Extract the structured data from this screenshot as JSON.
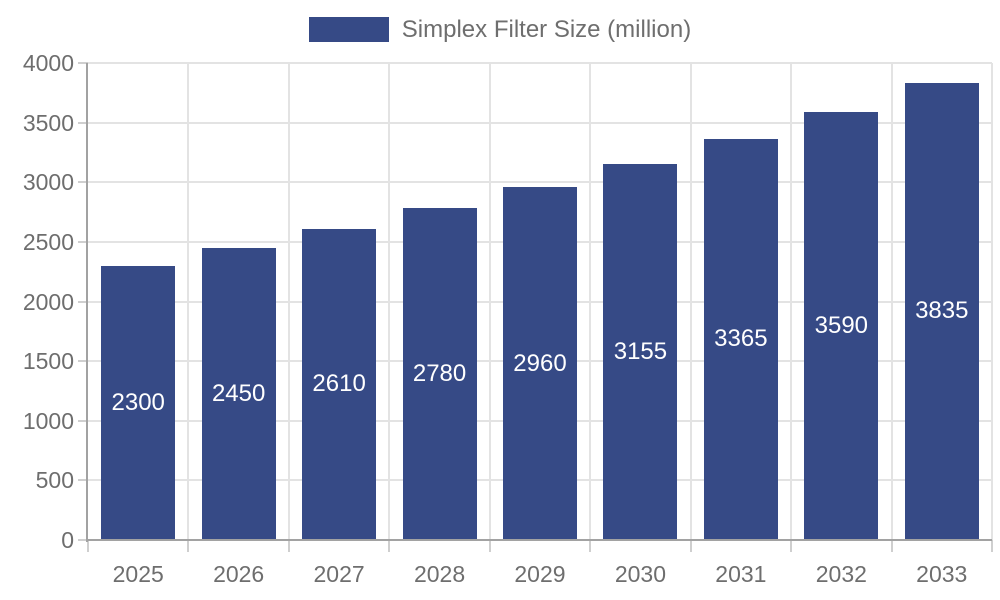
{
  "legend": {
    "label": "Simplex Filter Size (million)"
  },
  "colors": {
    "bar": "#364A86",
    "bar_value_label": "#FFFFFF",
    "grid": "#E3E3E3",
    "axis_line": "#A2A2A2",
    "tick": "#CFCFCF",
    "axis_label": "#6E6E6E",
    "legend_label": "#6E6E6E",
    "background": "#FFFFFF"
  },
  "chart_data": {
    "type": "bar",
    "categories": [
      "2025",
      "2026",
      "2027",
      "2028",
      "2029",
      "2030",
      "2031",
      "2032",
      "2033"
    ],
    "series": [
      {
        "name": "Simplex Filter Size (million)",
        "values": [
          2300,
          2450,
          2610,
          2780,
          2960,
          3155,
          3365,
          3590,
          3835
        ]
      }
    ],
    "title": "",
    "xlabel": "",
    "ylabel": "",
    "ylim": [
      0,
      4000
    ],
    "ytick_step": 500,
    "yticks": [
      0,
      500,
      1000,
      1500,
      2000,
      2500,
      3000,
      3500,
      4000
    ],
    "grid": true,
    "legend_position": "top",
    "bar_value_labels": true,
    "bar_value_label_position": "center"
  }
}
